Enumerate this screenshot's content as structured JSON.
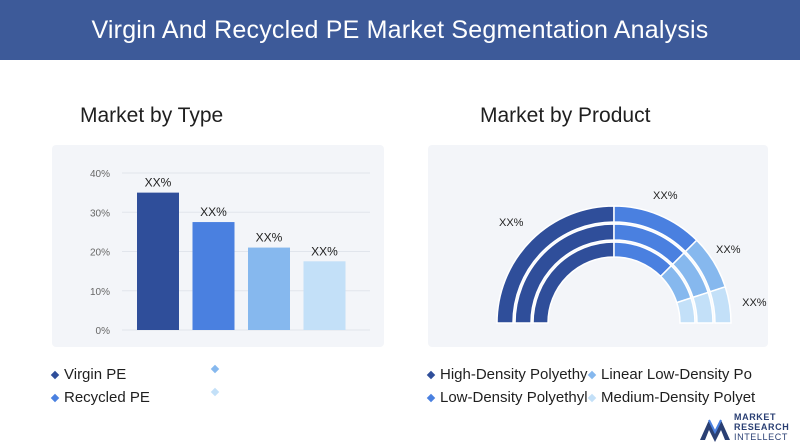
{
  "header": {
    "title": "Virgin And Recycled PE Market Segmentation Analysis"
  },
  "left_panel": {
    "title": "Market by Type"
  },
  "right_panel": {
    "title": "Market by Product"
  },
  "colors": {
    "banner": "#3d5a99",
    "dark_blue": "#2f4e9a",
    "blue": "#4a80e0",
    "light_blue": "#86b8ee",
    "pale_blue": "#c3e0f8"
  },
  "chart_data": [
    {
      "type": "bar",
      "title": "Market by Type",
      "categories": [
        "Virgin PE",
        "",
        "Recycled PE",
        ""
      ],
      "values": [
        35,
        27.5,
        21,
        17.5
      ],
      "data_labels": [
        "XX%",
        "XX%",
        "XX%",
        "XX%"
      ],
      "y_ticks": [
        "0%",
        "10%",
        "20%",
        "30%",
        "40%"
      ],
      "ylim": [
        0,
        40
      ],
      "colors": [
        "#2f4e9a",
        "#4a80e0",
        "#86b8ee",
        "#c3e0f8"
      ],
      "legend": [
        "Virgin PE",
        "",
        "Recycled PE",
        ""
      ],
      "grid": true
    },
    {
      "type": "pie",
      "title": "Market by Product",
      "style": "semicircle-donut",
      "categories": [
        "High-Density Polyethy",
        "Linear Low-Density Po",
        "Low-Density Polyethyl",
        "Medium-Density Polyet"
      ],
      "values": [
        50,
        25,
        15,
        10
      ],
      "data_labels": [
        "XX%",
        "XX%",
        "XX%",
        "XX%"
      ],
      "colors": [
        "#2f4e9a",
        "#4a80e0",
        "#86b8ee",
        "#c3e0f8"
      ],
      "legend": [
        "High-Density Polyethy",
        "Linear Low-Density Po",
        "Low-Density Polyethyl",
        "Medium-Density Polyet"
      ]
    }
  ],
  "logo": {
    "line1": "MARKET",
    "line2": "RESEARCH",
    "line3": "INTELLECT"
  }
}
